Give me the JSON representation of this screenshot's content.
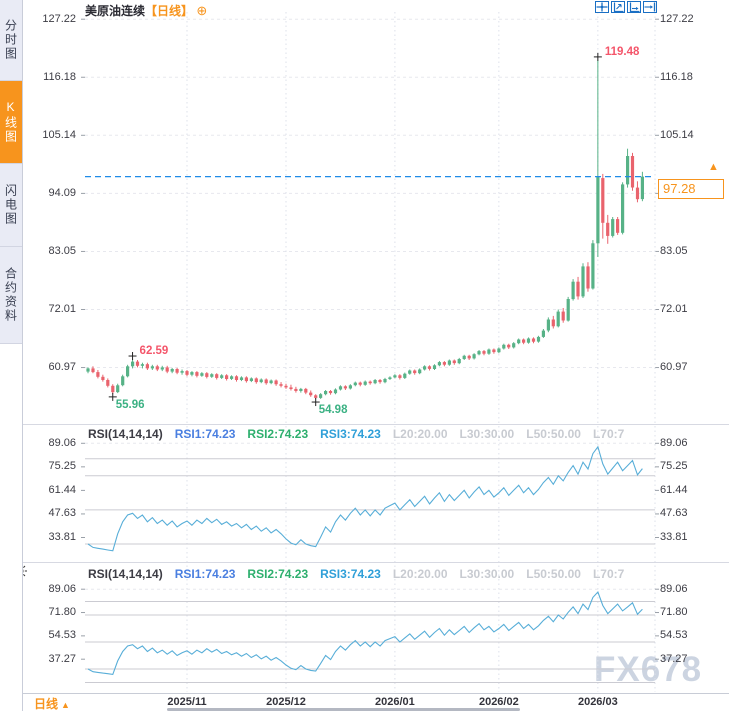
{
  "window": {
    "symbol": "美原油连续",
    "period_tag": "【日线】"
  },
  "sidebar": {
    "items": [
      {
        "label": "分时图",
        "active": false
      },
      {
        "label": "K线图",
        "active": true
      },
      {
        "label": "闪电图",
        "active": false
      },
      {
        "label": "合约资料",
        "active": false
      }
    ]
  },
  "toolbar": {
    "icons": [
      "crosshair-icon",
      "x-scale-icon",
      "y-scale-icon",
      "goto-latest-icon"
    ]
  },
  "colors": {
    "up_candle": "#57b287",
    "down_candle": "#e9636d",
    "accent_orange": "#f7941d",
    "last_price_line": "#1f8be8",
    "rsi_line": "#58aed8",
    "annotation_high": "#f4556a",
    "annotation_low": "#3bb183",
    "watermark_color": "#ccd4e1",
    "axis_text": "#3c3c44",
    "level_text": "#c8cbd1"
  },
  "watermark": "FX678",
  "price_box": {
    "value": "97.28",
    "arrow": "▲"
  },
  "footer": {
    "period_label": "日线",
    "arrow": "▲"
  },
  "rsi_panels": [
    {
      "title": "RSI(14,14,14)",
      "series_labels": [
        {
          "text": "RSI1:74.23",
          "color": "#4a7fe0"
        },
        {
          "text": "RSI2:74.23",
          "color": "#2eaf6e"
        },
        {
          "text": "RSI3:74.23",
          "color": "#2f9fd8"
        }
      ],
      "level_labels": [
        "L20:20.00",
        "L30:30.00",
        "L50:50.00",
        "L70:7"
      ]
    },
    {
      "title": "RSI(14,14,14)",
      "series_labels": [
        {
          "text": "RSI1:74.23",
          "color": "#4a7fe0"
        },
        {
          "text": "RSI2:74.23",
          "color": "#2eaf6e"
        },
        {
          "text": "RSI3:74.23",
          "color": "#2f9fd8"
        }
      ],
      "level_labels": [
        "L20:20.00",
        "L30:30.00",
        "L50:50.00",
        "L70:7"
      ]
    }
  ],
  "chart_data": [
    {
      "type": "candlestick",
      "title": "美原油连续 日线",
      "y_ticks": [
        127.22,
        116.18,
        105.14,
        94.09,
        83.05,
        72.01,
        60.97
      ],
      "x_ticks": [
        {
          "label": "2025/11",
          "index": 20
        },
        {
          "label": "2025/12",
          "index": 40
        },
        {
          "label": "2026/01",
          "index": 62
        },
        {
          "label": "2026/02",
          "index": 83
        },
        {
          "label": "2026/03",
          "index": 103
        }
      ],
      "last_price": 97.28,
      "annotations": [
        {
          "label": "119.48",
          "price": 119.48,
          "index": 103,
          "kind": "high"
        },
        {
          "label": "62.59",
          "price": 62.59,
          "index": 9,
          "kind": "high"
        },
        {
          "label": "55.96",
          "price": 55.96,
          "index": 5,
          "kind": "low"
        },
        {
          "label": "54.98",
          "price": 54.98,
          "index": 46,
          "kind": "low"
        }
      ],
      "candles": [
        [
          60.2,
          61.0,
          59.9,
          60.8
        ],
        [
          60.8,
          61.2,
          59.9,
          60.1
        ],
        [
          60.1,
          60.5,
          58.9,
          59.2
        ],
        [
          59.2,
          59.6,
          58.3,
          58.6
        ],
        [
          58.6,
          58.9,
          57.2,
          57.5
        ],
        [
          57.5,
          57.8,
          55.96,
          56.3
        ],
        [
          56.3,
          57.9,
          56.1,
          57.6
        ],
        [
          57.6,
          59.6,
          57.4,
          59.3
        ],
        [
          59.3,
          61.5,
          59.1,
          61.2
        ],
        [
          61.2,
          62.59,
          60.8,
          62.1
        ],
        [
          62.1,
          62.4,
          61.0,
          61.3
        ],
        [
          61.3,
          61.9,
          60.8,
          61.6
        ],
        [
          61.6,
          61.9,
          60.5,
          60.8
        ],
        [
          60.8,
          61.5,
          60.5,
          61.2
        ],
        [
          61.2,
          61.5,
          60.3,
          60.6
        ],
        [
          60.6,
          61.3,
          60.3,
          61.0
        ],
        [
          61.0,
          61.3,
          59.9,
          60.2
        ],
        [
          60.2,
          60.9,
          59.9,
          60.7
        ],
        [
          60.7,
          60.9,
          59.7,
          60.0
        ],
        [
          60.0,
          60.6,
          59.6,
          60.3
        ],
        [
          60.3,
          60.5,
          59.3,
          59.6
        ],
        [
          59.6,
          60.3,
          59.3,
          60.1
        ],
        [
          60.1,
          60.3,
          59.1,
          59.4
        ],
        [
          59.4,
          60.1,
          59.2,
          59.9
        ],
        [
          59.9,
          60.1,
          58.9,
          59.2
        ],
        [
          59.2,
          59.9,
          59.0,
          59.7
        ],
        [
          59.7,
          59.9,
          58.7,
          59.0
        ],
        [
          59.0,
          59.7,
          58.8,
          59.5
        ],
        [
          59.5,
          59.7,
          58.5,
          58.8
        ],
        [
          58.8,
          59.5,
          58.6,
          59.3
        ],
        [
          59.3,
          59.5,
          58.3,
          58.6
        ],
        [
          58.6,
          59.3,
          58.4,
          59.1
        ],
        [
          59.1,
          59.3,
          58.1,
          58.4
        ],
        [
          58.4,
          59.1,
          58.2,
          58.9
        ],
        [
          58.9,
          59.1,
          57.9,
          58.2
        ],
        [
          58.2,
          58.9,
          58.0,
          58.7
        ],
        [
          58.7,
          58.9,
          57.7,
          58.0
        ],
        [
          58.0,
          58.7,
          57.8,
          58.5
        ],
        [
          58.5,
          58.7,
          57.5,
          57.8
        ],
        [
          57.8,
          58.2,
          57.2,
          57.5
        ],
        [
          57.5,
          57.9,
          56.9,
          57.2
        ],
        [
          57.2,
          57.7,
          56.6,
          56.9
        ],
        [
          56.9,
          57.3,
          56.2,
          56.5
        ],
        [
          56.5,
          57.1,
          56.2,
          56.9
        ],
        [
          56.9,
          57.1,
          55.9,
          56.2
        ],
        [
          56.2,
          56.6,
          55.4,
          55.7
        ],
        [
          55.7,
          55.9,
          54.98,
          55.2
        ],
        [
          55.2,
          56.1,
          55.0,
          55.9
        ],
        [
          55.9,
          56.7,
          55.7,
          56.5
        ],
        [
          56.5,
          56.7,
          55.8,
          56.1
        ],
        [
          56.1,
          57.0,
          55.9,
          56.8
        ],
        [
          56.8,
          57.6,
          56.6,
          57.4
        ],
        [
          57.4,
          57.6,
          56.7,
          57.0
        ],
        [
          57.0,
          57.8,
          56.8,
          57.6
        ],
        [
          57.6,
          58.3,
          57.4,
          58.1
        ],
        [
          58.1,
          58.3,
          57.4,
          57.7
        ],
        [
          57.7,
          58.5,
          57.5,
          58.3
        ],
        [
          58.3,
          58.5,
          57.7,
          58.0
        ],
        [
          58.0,
          58.8,
          57.8,
          58.6
        ],
        [
          58.6,
          58.8,
          57.9,
          58.2
        ],
        [
          58.2,
          59.0,
          58.0,
          58.8
        ],
        [
          58.8,
          59.3,
          58.6,
          59.1
        ],
        [
          59.1,
          59.7,
          58.9,
          59.5
        ],
        [
          59.5,
          59.7,
          58.7,
          59.0
        ],
        [
          59.0,
          60.0,
          58.8,
          59.8
        ],
        [
          59.8,
          60.6,
          59.6,
          60.4
        ],
        [
          60.4,
          60.6,
          59.6,
          59.9
        ],
        [
          59.9,
          60.8,
          59.7,
          60.6
        ],
        [
          60.6,
          61.4,
          60.4,
          61.2
        ],
        [
          61.2,
          61.4,
          60.4,
          60.7
        ],
        [
          60.7,
          61.6,
          60.5,
          61.4
        ],
        [
          61.4,
          62.2,
          61.2,
          62.0
        ],
        [
          62.0,
          62.2,
          61.2,
          61.5
        ],
        [
          61.5,
          62.5,
          61.3,
          62.3
        ],
        [
          62.3,
          62.5,
          61.5,
          61.8
        ],
        [
          61.8,
          62.8,
          61.6,
          62.6
        ],
        [
          62.6,
          63.4,
          62.4,
          63.2
        ],
        [
          63.2,
          63.4,
          62.4,
          62.7
        ],
        [
          62.7,
          63.7,
          62.5,
          63.5
        ],
        [
          63.5,
          64.3,
          63.3,
          64.1
        ],
        [
          64.1,
          64.3,
          63.3,
          63.6
        ],
        [
          63.6,
          64.6,
          63.4,
          64.4
        ],
        [
          64.4,
          64.6,
          63.6,
          63.9
        ],
        [
          63.9,
          64.8,
          63.7,
          64.6
        ],
        [
          64.6,
          65.5,
          64.4,
          65.3
        ],
        [
          65.3,
          65.5,
          64.5,
          64.8
        ],
        [
          64.8,
          65.8,
          64.6,
          65.6
        ],
        [
          65.6,
          66.5,
          65.4,
          66.3
        ],
        [
          66.3,
          66.5,
          65.4,
          65.7
        ],
        [
          65.7,
          66.7,
          65.5,
          66.5
        ],
        [
          66.5,
          66.7,
          65.6,
          65.9
        ],
        [
          65.9,
          67.0,
          65.7,
          66.8
        ],
        [
          66.8,
          68.3,
          66.6,
          68.0
        ],
        [
          68.0,
          70.5,
          67.7,
          70.1
        ],
        [
          70.1,
          70.8,
          68.4,
          68.8
        ],
        [
          68.8,
          72.0,
          68.6,
          71.6
        ],
        [
          71.6,
          72.3,
          69.5,
          69.9
        ],
        [
          69.9,
          74.4,
          69.7,
          74.0
        ],
        [
          74.0,
          77.8,
          73.7,
          77.3
        ],
        [
          77.3,
          78.2,
          73.9,
          74.5
        ],
        [
          74.5,
          80.8,
          74.2,
          80.2
        ],
        [
          80.2,
          81.0,
          75.4,
          76.0
        ],
        [
          76.0,
          85.2,
          75.8,
          84.6
        ],
        [
          84.6,
          119.48,
          82.0,
          97.3
        ],
        [
          97.0,
          97.8,
          85.5,
          88.5
        ],
        [
          88.5,
          90.0,
          84.5,
          86.0
        ],
        [
          86.0,
          89.6,
          85.7,
          89.2
        ],
        [
          89.2,
          89.6,
          86.2,
          86.6
        ],
        [
          86.6,
          96.2,
          86.3,
          95.8
        ],
        [
          95.8,
          102.6,
          95.2,
          101.2
        ],
        [
          101.2,
          101.8,
          94.6,
          95.2
        ],
        [
          95.2,
          96.4,
          92.4,
          93.0
        ],
        [
          93.0,
          98.2,
          92.6,
          97.28
        ]
      ]
    },
    {
      "type": "line",
      "name": "RSI(14,14,14) panel 1",
      "y_ticks": [
        89.06,
        75.25,
        61.44,
        47.63,
        33.81
      ],
      "ref_levels": [
        20,
        30,
        50,
        70,
        80
      ],
      "values": [
        30,
        28,
        27.5,
        27,
        26.5,
        26,
        36,
        43,
        47,
        48,
        45,
        47,
        43,
        45.5,
        42,
        44,
        41,
        43.5,
        40,
        42,
        43.5,
        41,
        44,
        42,
        45,
        42.5,
        44.5,
        41.5,
        43,
        40.5,
        42,
        39.5,
        41.5,
        38.5,
        40.5,
        37.5,
        39.5,
        36.5,
        38.5,
        36,
        33,
        30.5,
        29.5,
        32.5,
        30,
        29,
        28.5,
        34,
        40,
        37,
        43,
        47,
        44,
        48,
        51,
        47,
        50,
        46.5,
        50,
        47,
        51,
        52.5,
        54,
        50,
        53,
        56,
        52,
        55,
        58,
        53.5,
        57,
        60,
        55,
        59,
        55.5,
        58.5,
        61.5,
        57,
        60.5,
        63.5,
        59,
        61.5,
        57.5,
        60,
        63,
        58.5,
        61.5,
        64.5,
        60,
        63,
        59,
        62,
        66,
        69,
        65,
        70,
        67,
        72,
        76,
        71,
        78,
        74,
        83,
        87,
        77,
        71,
        74.5,
        78,
        73,
        76,
        79,
        70.5,
        74.23
      ]
    },
    {
      "type": "line",
      "name": "RSI(14,14,14) panel 2",
      "y_ticks": [
        89.06,
        71.8,
        54.53,
        37.27
      ],
      "ref_levels": [
        20,
        30,
        50,
        70,
        80
      ],
      "values": [
        30,
        28,
        27.5,
        27,
        26.5,
        26,
        36,
        43,
        47,
        48,
        45,
        47,
        43,
        45.5,
        42,
        44,
        41,
        43.5,
        40,
        42,
        43.5,
        41,
        44,
        42,
        45,
        42.5,
        44.5,
        41.5,
        43,
        40.5,
        42,
        39.5,
        41.5,
        38.5,
        40.5,
        37.5,
        39.5,
        36.5,
        38.5,
        36,
        33,
        30.5,
        29.5,
        32.5,
        30,
        29,
        28.5,
        34,
        40,
        37,
        43,
        47,
        44,
        48,
        51,
        47,
        50,
        46.5,
        50,
        47,
        51,
        52.5,
        54,
        50,
        53,
        56,
        52,
        55,
        58,
        53.5,
        57,
        60,
        55,
        59,
        55.5,
        58.5,
        61.5,
        57,
        60.5,
        63.5,
        59,
        61.5,
        57.5,
        60,
        63,
        58.5,
        61.5,
        64.5,
        60,
        63,
        59,
        62,
        66,
        69,
        65,
        70,
        67,
        72,
        76,
        71,
        78,
        74,
        83,
        87,
        77,
        71,
        74.5,
        78,
        73,
        76,
        79,
        70.5,
        74.23
      ]
    }
  ]
}
